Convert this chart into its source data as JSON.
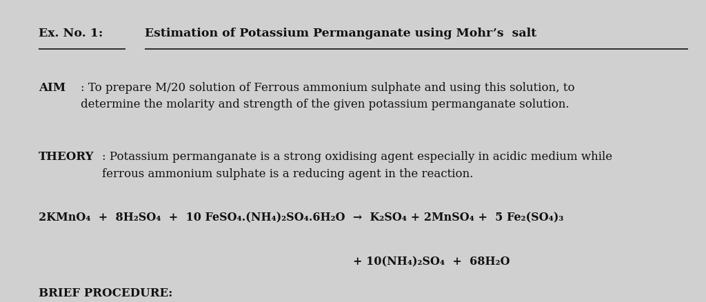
{
  "bg_color": "#d0d0d0",
  "title_label": "Ex. No. 1:",
  "title_text": "Estimation of Potassium Permanganate using Mohr’s  salt",
  "aim_label": "AIM",
  "aim_text": ": To prepare M/20 solution of Ferrous ammonium sulphate and using this solution, to\ndetermine the molarity and strength of the given potassium permanganate solution.",
  "theory_label": "THEORY",
  "theory_text": ": Potassium permanganate is a strong oxidising agent especially in acidic medium while\nferrous ammonium sulphate is a reducing agent in the reaction.",
  "equation_line1": "2KMnO₄  +  8H₂SO₄  +  10 FeSO₄.(NH₄)₂SO₄.6H₂O  →  K₂SO₄ + 2MnSO₄ +  5 Fe₂(SO₄)₃",
  "equation_line2": "+ 10(NH₄)₂SO₄  +  68H₂O",
  "brief_label": "BRIEF PROCEDURE:",
  "font_color": "#111111",
  "figsize": [
    10.24,
    4.39
  ],
  "dpi": 100
}
